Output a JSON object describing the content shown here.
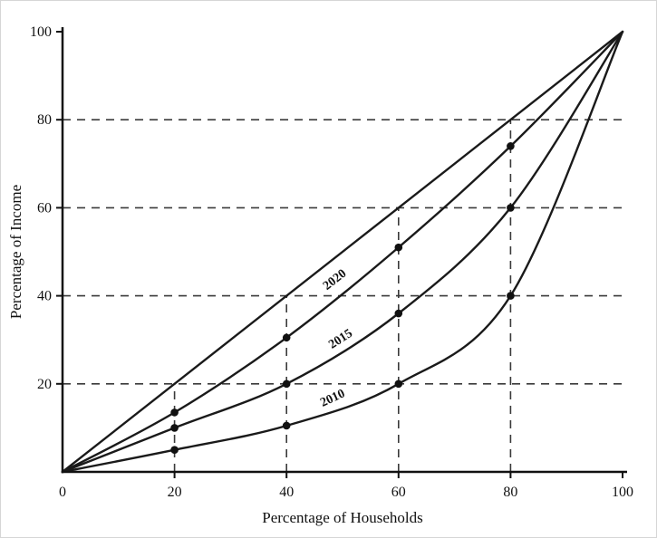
{
  "figure": {
    "background": "#ffffff",
    "border_color": "#d6d6d6"
  },
  "chart_data": {
    "type": "line",
    "title": "",
    "xlabel": "Percentage of Households",
    "ylabel": "Percentage of Income",
    "xlim": [
      0,
      100
    ],
    "ylim": [
      0,
      100
    ],
    "x_ticks": [
      0,
      20,
      40,
      60,
      80,
      100
    ],
    "y_ticks": [
      20,
      40,
      60,
      80,
      100
    ],
    "grid": {
      "style": "dashed",
      "horizontal_dashed_at": [
        20,
        40,
        60,
        80
      ],
      "vertical_dashed_to_diagonal_at": [
        20,
        40,
        60,
        80
      ]
    },
    "line_color": "#1a1a1a",
    "marker_color": "#111111",
    "grid_color": "#3a3a3a",
    "series": [
      {
        "name": "line-of-equality",
        "label": "",
        "x": [
          0,
          100
        ],
        "y": [
          0,
          100
        ],
        "markers": false
      },
      {
        "name": "lorenz-2020",
        "label": "2020",
        "x": [
          0,
          20,
          40,
          60,
          80,
          100
        ],
        "y": [
          0,
          13.5,
          30.5,
          51,
          74,
          100
        ],
        "markers": true,
        "label_pos": {
          "x": 49,
          "y": 43
        },
        "label_angle": -38
      },
      {
        "name": "lorenz-2015",
        "label": "2015",
        "x": [
          0,
          20,
          40,
          60,
          80,
          100
        ],
        "y": [
          0,
          10,
          20,
          36,
          60,
          100
        ],
        "markers": true,
        "label_pos": {
          "x": 50,
          "y": 29.5
        },
        "label_angle": -33
      },
      {
        "name": "lorenz-2010",
        "label": "2010",
        "x": [
          0,
          20,
          40,
          60,
          80,
          100
        ],
        "y": [
          0,
          5,
          10.5,
          20,
          40,
          100
        ],
        "markers": true,
        "label_pos": {
          "x": 48.5,
          "y": 16
        },
        "label_angle": -25
      }
    ]
  }
}
